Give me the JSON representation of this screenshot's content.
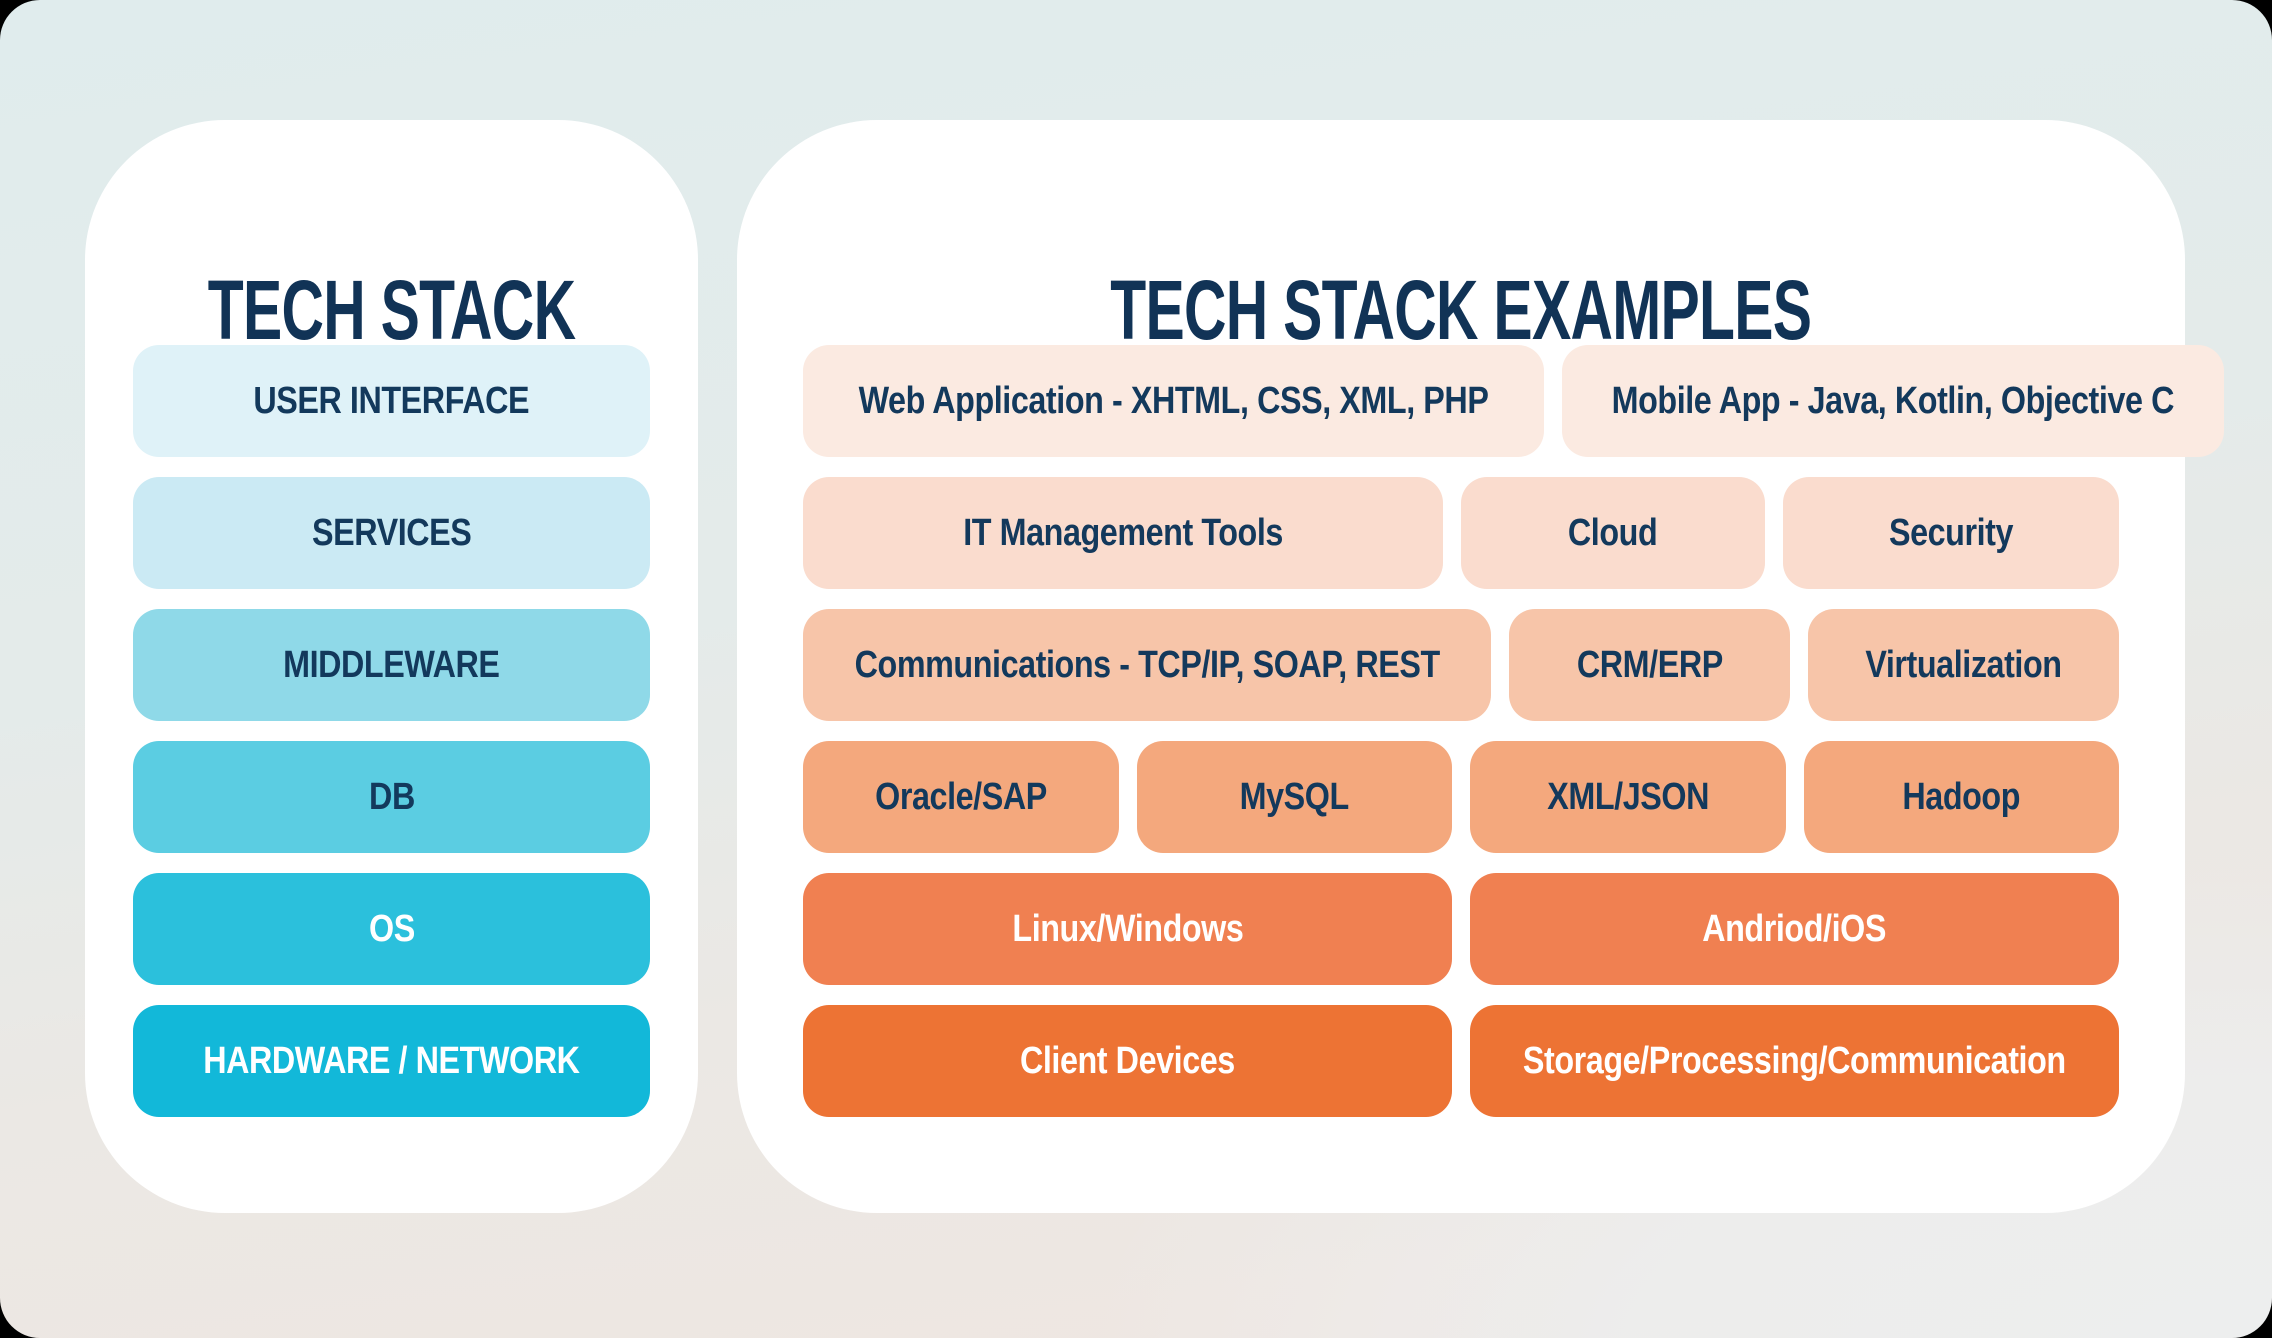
{
  "background": {
    "corner_color": "#000000",
    "top_tint": "#e0eced",
    "bottom_left_tint": "#efe6e1",
    "bottom_right_tint": "#edeeee",
    "panel_color": "#ffffff"
  },
  "text_colors": {
    "navy": "#13395c",
    "white": "#ffffff"
  },
  "left_panel": {
    "title": "TECH STACK",
    "layers": [
      {
        "label": "USER INTERFACE",
        "bg": "#dff2f8",
        "fg": "#13395c"
      },
      {
        "label": "SERVICES",
        "bg": "#cbeaf4",
        "fg": "#13395c"
      },
      {
        "label": "MIDDLEWARE",
        "bg": "#8fd9e8",
        "fg": "#13395c"
      },
      {
        "label": "DB",
        "bg": "#5bcde2",
        "fg": "#13395c"
      },
      {
        "label": "OS",
        "bg": "#2bc0dc",
        "fg": "#ffffff"
      },
      {
        "label": "HARDWARE / NETWORK",
        "bg": "#12b8d9",
        "fg": "#ffffff"
      }
    ]
  },
  "right_panel": {
    "title": "TECH STACK EXAMPLES",
    "rows": [
      {
        "bg": "#fbeae1",
        "fg": "#13395c",
        "cells": [
          "Web Application - XHTML, CSS, XML, PHP",
          "Mobile App - Java, Kotlin, Objective C"
        ]
      },
      {
        "bg": "#fadcce",
        "fg": "#13395c",
        "cells": [
          "IT Management Tools",
          "Cloud",
          "Security"
        ]
      },
      {
        "bg": "#f7c5a9",
        "fg": "#13395c",
        "cells": [
          "Communications - TCP/IP, SOAP, REST",
          "CRM/ERP",
          "Virtualization"
        ]
      },
      {
        "bg": "#f4a87d",
        "fg": "#13395c",
        "cells": [
          "Oracle/SAP",
          "MySQL",
          "XML/JSON",
          "Hadoop"
        ]
      },
      {
        "bg": "#f08051",
        "fg": "#ffffff",
        "cells": [
          "Linux/Windows",
          "Andriod/iOS"
        ]
      },
      {
        "bg": "#ed7334",
        "fg": "#ffffff",
        "cells": [
          "Client Devices",
          "Storage/Processing/Communication"
        ]
      }
    ]
  }
}
